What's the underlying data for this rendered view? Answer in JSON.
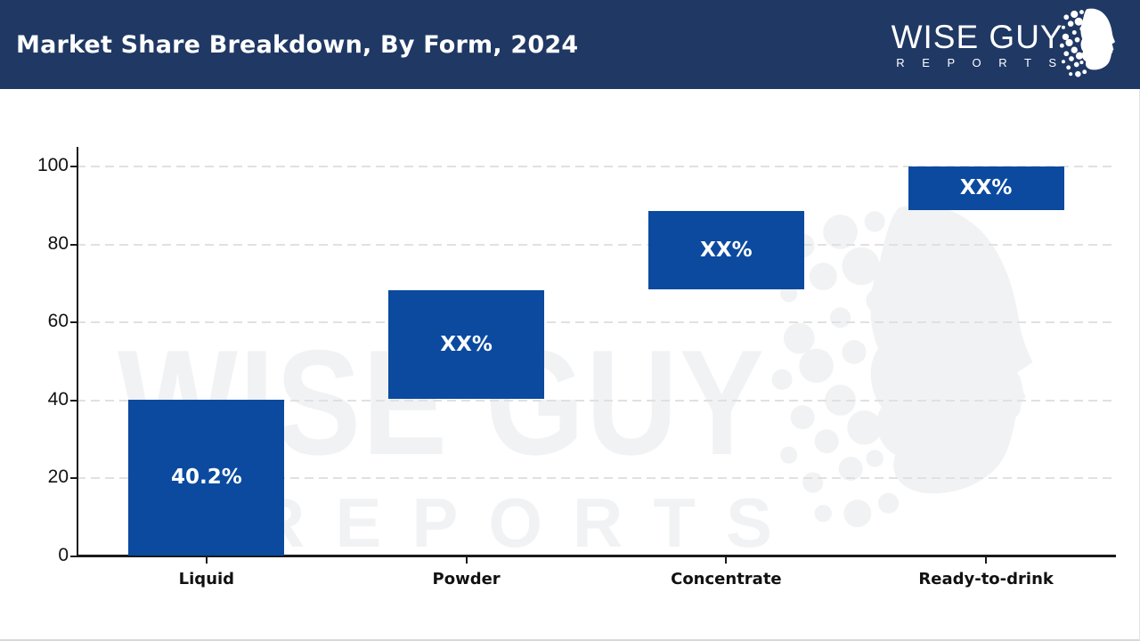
{
  "header": {
    "title": "Market Share Breakdown, By Form, 2024",
    "logo": {
      "wordmark": "WISE GUY",
      "subtext": "R E P O R T S"
    }
  },
  "watermark": {
    "line1": "WISE GUY",
    "line2": "REPORTS"
  },
  "colors": {
    "header_bg": "#1F3864",
    "bar": "#0B4A9F",
    "grid": "#E1E1E1",
    "axis": "#1A1A1A",
    "watermark": "#F1F2F4",
    "bar_label": "#FFFFFF",
    "tick_text": "#111111"
  },
  "chart_data": {
    "type": "bar",
    "subtype": "waterfall-stacked-market-share",
    "title": "Market Share Breakdown, By Form, 2024",
    "categories": [
      "Liquid",
      "Powder",
      "Concentrate",
      "Ready-to-drink"
    ],
    "segments": [
      {
        "category": "Liquid",
        "start": 0,
        "end": 40.2,
        "label": "40.2%"
      },
      {
        "category": "Powder",
        "start": 40.2,
        "end": 68.2,
        "label": "XX%"
      },
      {
        "category": "Concentrate",
        "start": 68.2,
        "end": 88.6,
        "label": "XX%"
      },
      {
        "category": "Ready-to-drink",
        "start": 88.6,
        "end": 100,
        "label": "XX%"
      }
    ],
    "xlabel": "",
    "ylabel": "",
    "ylim": [
      0,
      100
    ],
    "yticks": [
      0,
      20,
      40,
      60,
      80,
      100
    ],
    "grid": "horizontal-dashed",
    "legend": null
  }
}
